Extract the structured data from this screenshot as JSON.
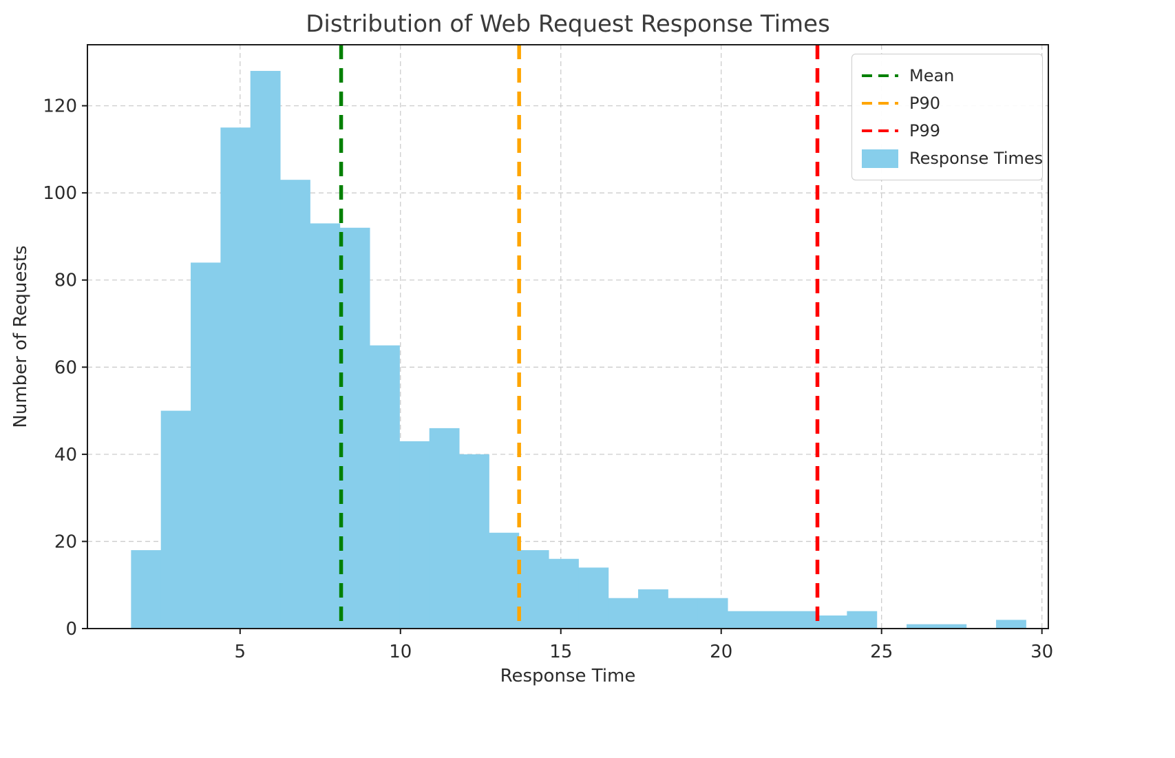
{
  "chart_data": {
    "type": "bar",
    "subtype": "histogram",
    "title": "Distribution of Web Request Response Times",
    "xlabel": "Response Time",
    "ylabel": "Number of Requests",
    "bar_color": "#87CEEB",
    "bin_start": 1.6,
    "bin_width": 0.93,
    "counts": [
      18,
      50,
      84,
      115,
      128,
      103,
      93,
      92,
      65,
      43,
      46,
      40,
      22,
      18,
      16,
      14,
      7,
      9,
      7,
      7,
      4,
      4,
      4,
      3,
      4,
      0,
      1,
      1,
      0,
      2
    ],
    "vlines": [
      {
        "label": "Mean",
        "x": 8.15,
        "color": "#008000"
      },
      {
        "label": "P90",
        "x": 13.7,
        "color": "#FFA500"
      },
      {
        "label": "P99",
        "x": 23.0,
        "color": "#FF0000"
      }
    ],
    "xticks": [
      5,
      10,
      15,
      20,
      25,
      30
    ],
    "yticks": [
      0,
      20,
      40,
      60,
      80,
      100,
      120
    ],
    "xlim": [
      0.24,
      30.2
    ],
    "ylim": [
      0,
      134
    ],
    "grid": true,
    "legend_position": "upper right",
    "legend_labels": [
      "Mean",
      "P90",
      "P99",
      "Response Times"
    ]
  },
  "legend": {
    "items": [
      {
        "label": "Mean",
        "type": "line",
        "color": "#008000"
      },
      {
        "label": "P90",
        "type": "line",
        "color": "#FFA500"
      },
      {
        "label": "P99",
        "type": "line",
        "color": "#FF0000"
      },
      {
        "label": "Response Times",
        "type": "patch",
        "color": "#87CEEB"
      }
    ]
  }
}
